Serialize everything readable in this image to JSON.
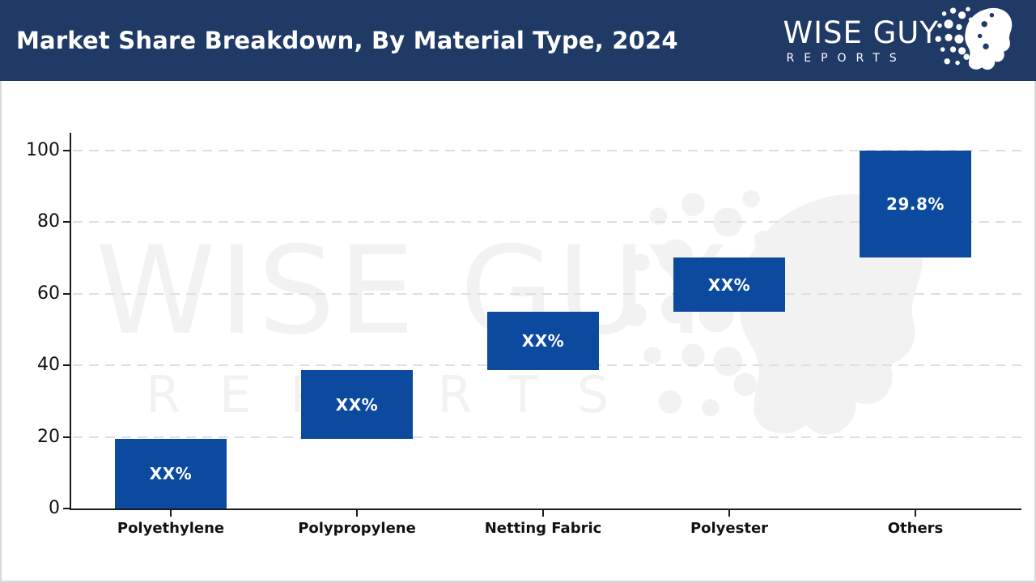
{
  "header": {
    "title": "Market Share Breakdown, By Material Type, 2024",
    "logo": {
      "wordmark": "WISE GUY",
      "subtitle": "REPORTS"
    }
  },
  "watermark": {
    "wordmark": "WISE GUY",
    "subtitle": "REPORTS"
  },
  "colors": {
    "header_bg": "#203a66",
    "bar": "#0b4a9e",
    "bar_label": "#ffffff",
    "axis": "#1a1a1a",
    "grid": "#dfdfdf",
    "watermark": "#f2f2f2",
    "title_text": "#ffffff"
  },
  "chart_data": {
    "type": "bar",
    "subtype": "waterfall",
    "title": "Market Share Breakdown, By Material Type, 2024",
    "categories": [
      "Polyethylene",
      "Polypropylene",
      "Netting Fabric",
      "Polyester",
      "Others"
    ],
    "segments": [
      {
        "category": "Polyethylene",
        "start": 0,
        "end": 19.4,
        "label": "XX%"
      },
      {
        "category": "Polypropylene",
        "start": 19.4,
        "end": 38.7,
        "label": "XX%"
      },
      {
        "category": "Netting Fabric",
        "start": 38.7,
        "end": 54.9,
        "label": "XX%"
      },
      {
        "category": "Polyester",
        "start": 54.9,
        "end": 70.2,
        "label": "XX%"
      },
      {
        "category": "Others",
        "start": 70.2,
        "end": 100,
        "label": "29.8%"
      }
    ],
    "yticks": [
      0,
      20,
      40,
      60,
      80,
      100
    ],
    "ylim": [
      0,
      105
    ],
    "xlabel": "",
    "ylabel": "",
    "grid": "dashed-horizontal",
    "legend": "none"
  }
}
